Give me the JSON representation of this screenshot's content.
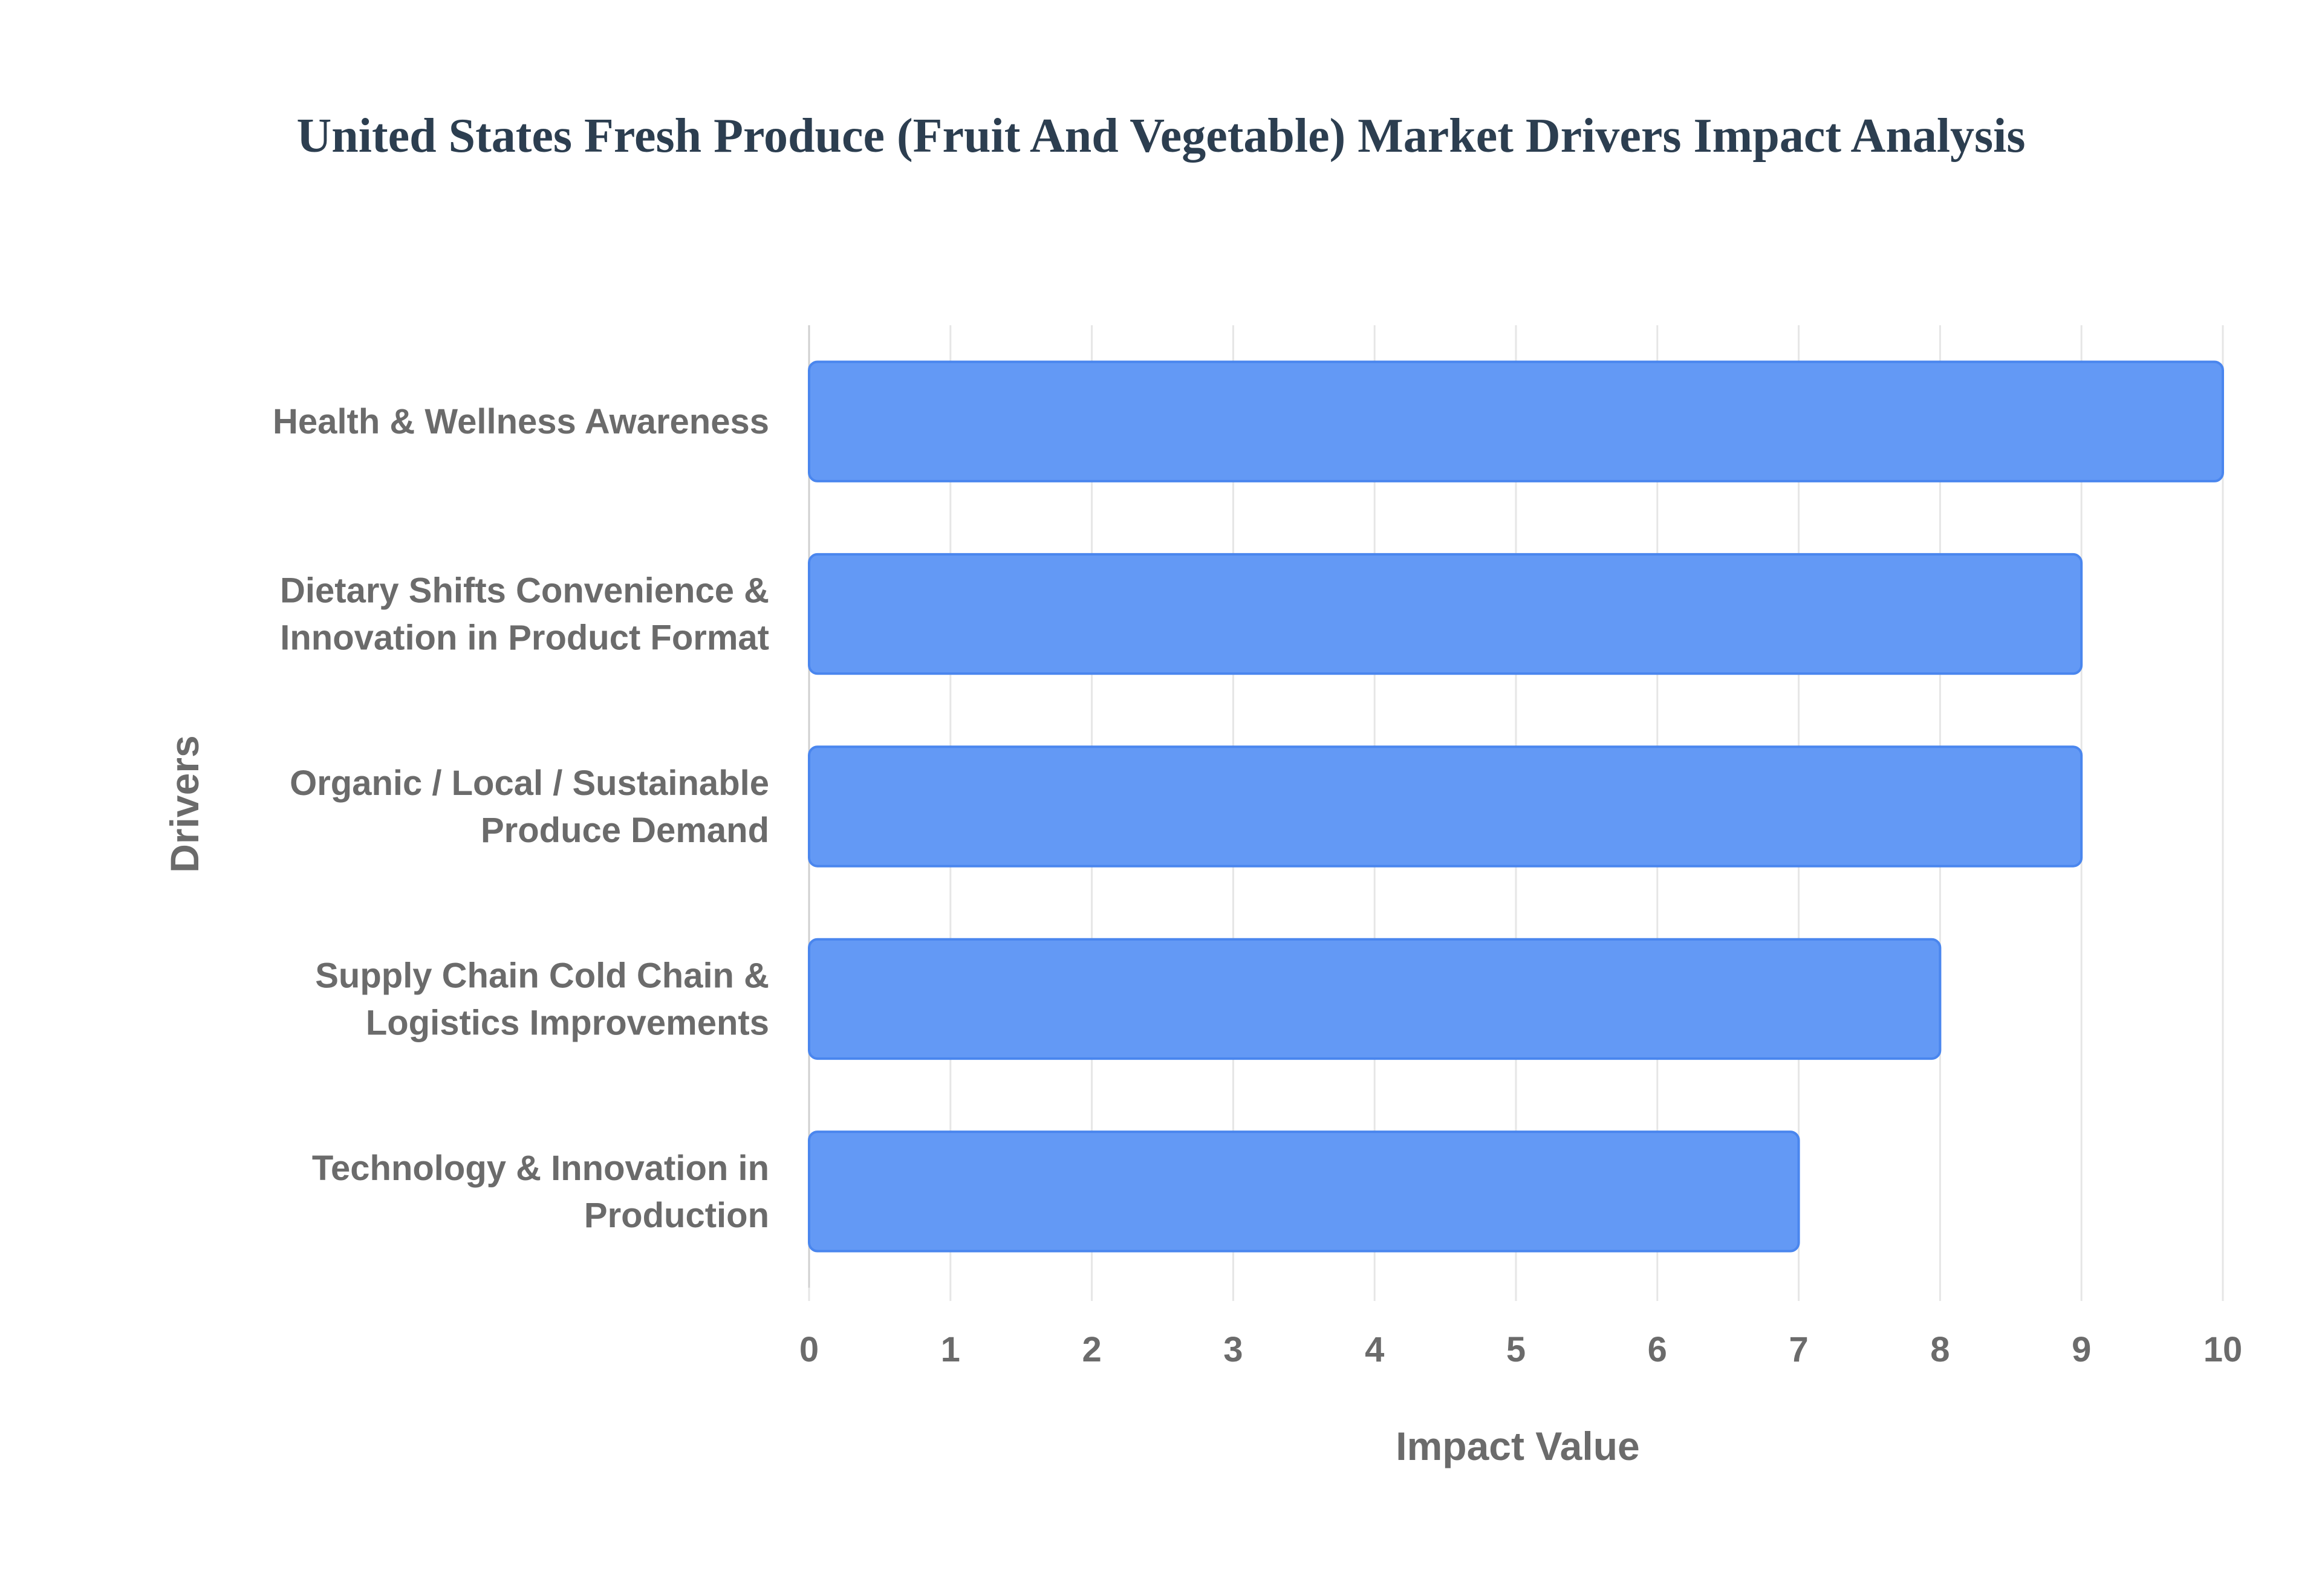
{
  "chart_data": {
    "type": "bar",
    "orientation": "horizontal",
    "title": "United States Fresh Produce (Fruit And Vegetable) Market Drivers Impact Analysis",
    "xlabel": "Impact Value",
    "ylabel": "Drivers",
    "xlim": [
      0,
      10
    ],
    "x_ticks": [
      "0",
      "1",
      "2",
      "3",
      "4",
      "5",
      "6",
      "7",
      "8",
      "9",
      "10"
    ],
    "grid": true,
    "legend": "none",
    "categories": [
      [
        "Health & Wellness Awareness"
      ],
      [
        "Dietary Shifts Convenience &",
        "Innovation in Product Format"
      ],
      [
        "Organic / Local / Sustainable",
        "Produce Demand"
      ],
      [
        "Supply Chain Cold Chain &",
        "Logistics Improvements"
      ],
      [
        "Technology & Innovation in",
        "Production"
      ]
    ],
    "values": [
      10,
      9,
      9,
      8,
      7
    ],
    "colors": {
      "bar_fill": "#6399f5",
      "bar_stroke": "#4a86ee",
      "grid": "#e6e6e6",
      "text": "#6b6b6b",
      "title": "#2c3e50"
    }
  }
}
